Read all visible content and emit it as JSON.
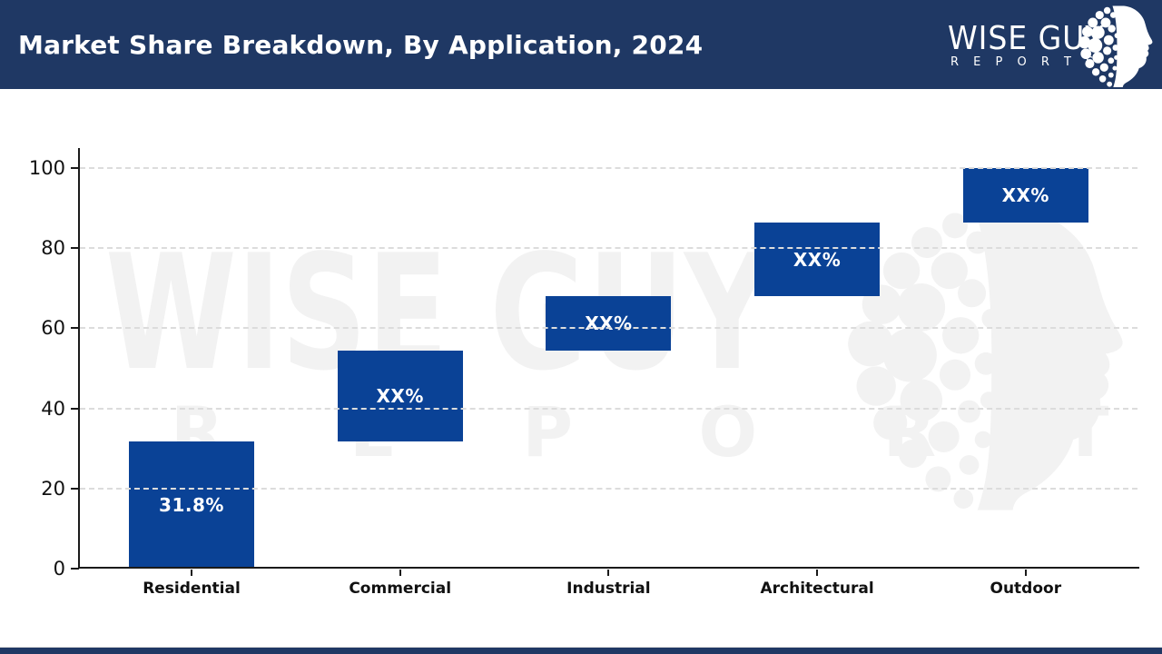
{
  "header": {
    "title": "Market Share Breakdown, By Application, 2024",
    "logo": {
      "line1": "WISE GUY",
      "line2": "R E P O R T S"
    }
  },
  "watermark": {
    "line1": "WISE GUY",
    "line2": "R E P O R T S"
  },
  "chart_data": {
    "type": "bar",
    "subtype": "waterfall",
    "title": "Market Share Breakdown, By Application, 2024",
    "categories": [
      "Residential",
      "Commercial",
      "Industrial",
      "Architectural",
      "Outdoor"
    ],
    "bars": [
      {
        "category": "Residential",
        "start": 0,
        "end": 31.8,
        "label": "31.8%"
      },
      {
        "category": "Commercial",
        "start": 31.8,
        "end": 54.5,
        "label": "XX%"
      },
      {
        "category": "Industrial",
        "start": 54.5,
        "end": 68.0,
        "label": "XX%"
      },
      {
        "category": "Architectural",
        "start": 68.0,
        "end": 86.4,
        "label": "XX%"
      },
      {
        "category": "Outdoor",
        "start": 86.4,
        "end": 100,
        "label": "XX%"
      }
    ],
    "yticks": [
      0,
      20,
      40,
      60,
      80,
      100
    ],
    "ylim": [
      0,
      105
    ],
    "xlabel": "",
    "ylabel": "",
    "grid": "horizontal-dashed",
    "legend_position": "none",
    "bar_color": "#0a4296",
    "value_label_color": "#ffffff"
  },
  "colors": {
    "header_navy": "#1f3864",
    "bar_blue": "#0a4296",
    "gridline": "#dcdcdc",
    "axis": "#1a1a1a",
    "watermark": "#f2f2f2",
    "tick_label": "#111111"
  }
}
